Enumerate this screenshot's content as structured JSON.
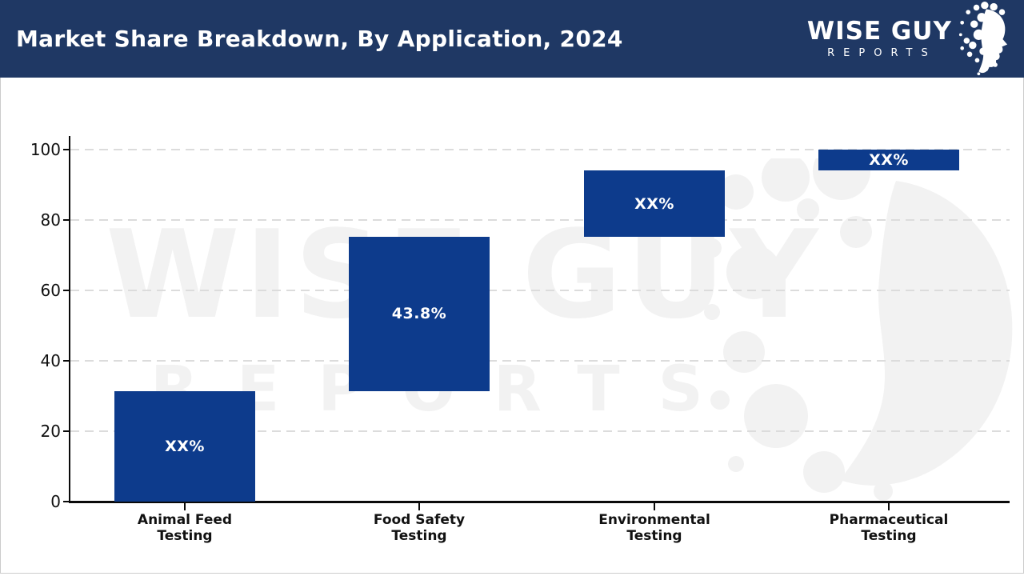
{
  "header": {
    "title": "Market Share Breakdown, By Application, 2024",
    "bg_color": "#1f3864",
    "logo": {
      "line1": "WISE GUY",
      "line2": "REPORTS"
    }
  },
  "watermark": {
    "line1": "WISE GUY",
    "line2": "REPORTS"
  },
  "chart_data": {
    "type": "bar",
    "subtype": "floating-waterfall",
    "title": "Market Share Breakdown, By Application, 2024",
    "categories": [
      "Animal Feed Testing",
      "Food Safety Testing",
      "Environmental Testing",
      "Pharmaceutical Testing"
    ],
    "category_lines": [
      [
        "Animal Feed",
        "Testing"
      ],
      [
        "Food Safety",
        "Testing"
      ],
      [
        "Environmental",
        "Testing"
      ],
      [
        "Pharmaceutical",
        "Testing"
      ]
    ],
    "series": [
      {
        "name": "Market Share (%)",
        "segments": [
          {
            "category": "Animal Feed Testing",
            "start": 0,
            "end": 31.4,
            "label": "XX%"
          },
          {
            "category": "Food Safety Testing",
            "start": 31.4,
            "end": 75.2,
            "label": "43.8%"
          },
          {
            "category": "Environmental Testing",
            "start": 75.2,
            "end": 94.1,
            "label": "XX%"
          },
          {
            "category": "Pharmaceutical Testing",
            "start": 94.1,
            "end": 100,
            "label": "XX%"
          }
        ]
      }
    ],
    "yticks": [
      "0",
      "20",
      "40",
      "60",
      "80",
      "100"
    ],
    "ylim": [
      0,
      103.5
    ],
    "xlabel": "",
    "ylabel": "",
    "grid": "horizontal-dashed",
    "legend": "none",
    "bar_color": "#0d3b8c"
  },
  "colors": {
    "header_bg": "#1f3864",
    "bar": "#0d3b8c",
    "grid": "#dcdcdc",
    "axis": "#0a0a0a",
    "watermark": "#f2f2f2",
    "frame": "#cccccc"
  }
}
